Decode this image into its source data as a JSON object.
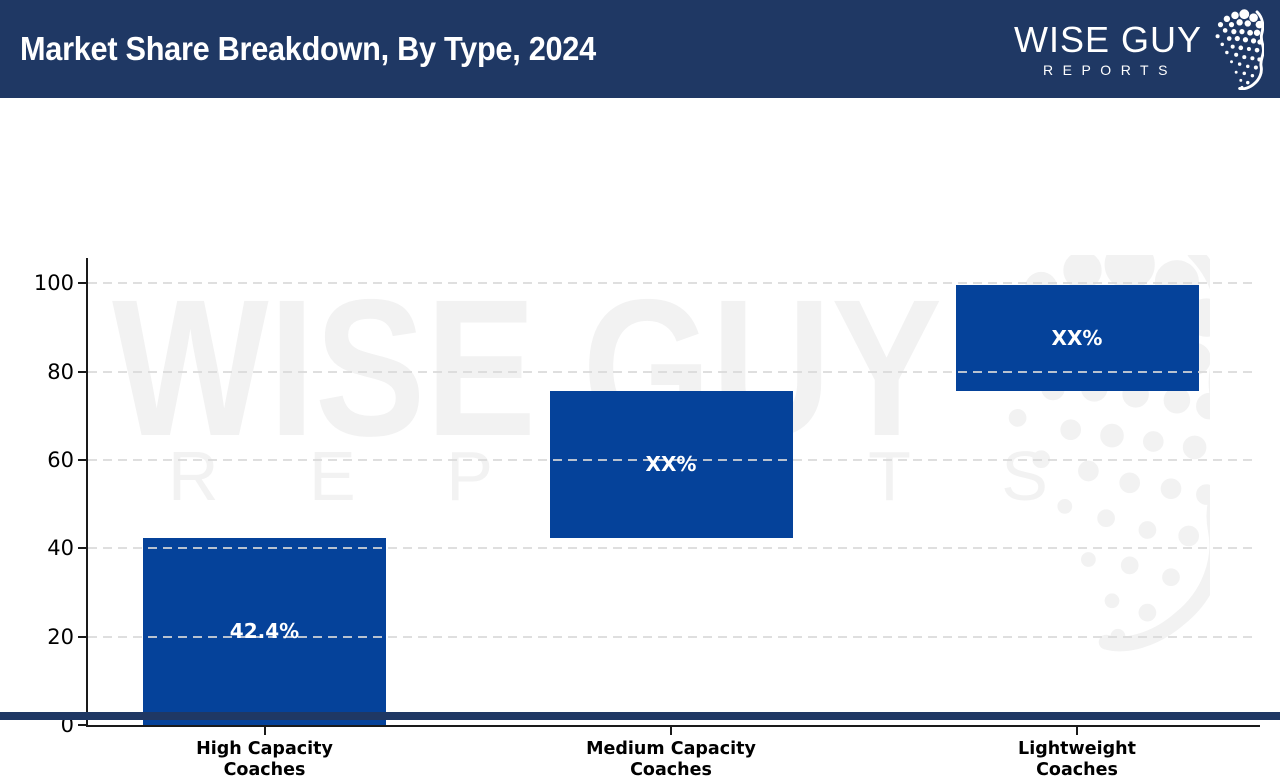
{
  "header": {
    "title": "Market Share Breakdown, By Type, 2024",
    "bg_color": "#1f3864",
    "logo": {
      "line1": "WISE GUY",
      "line2": "REPORTS"
    }
  },
  "watermark": {
    "line1": "WISE GUY",
    "line2": "REPORTS",
    "color": "#f2f2f2"
  },
  "footer": {
    "bg_color": "#1f3864"
  },
  "chart_data": {
    "type": "bar",
    "subtype": "floating-waterfall",
    "title": "Market Share Breakdown, By Type, 2024",
    "categories": [
      "High Capacity Coaches",
      "Medium Capacity Coaches",
      "Lightweight Coaches"
    ],
    "segments": [
      {
        "start": 0,
        "end": 42.4,
        "label": "42.4%"
      },
      {
        "start": 42.4,
        "end": 75.6,
        "label": "XX%"
      },
      {
        "start": 75.6,
        "end": 99.6,
        "label": "XX%"
      }
    ],
    "bar_color": "#05429a",
    "label_color": "#ffffff",
    "xlabel": "",
    "ylabel": "",
    "yticks": [
      0,
      20,
      40,
      60,
      80,
      100
    ],
    "ylim": [
      0,
      105
    ],
    "grid": "horizontal-dashed",
    "grid_color": "#d9d9d9",
    "legend": null
  }
}
